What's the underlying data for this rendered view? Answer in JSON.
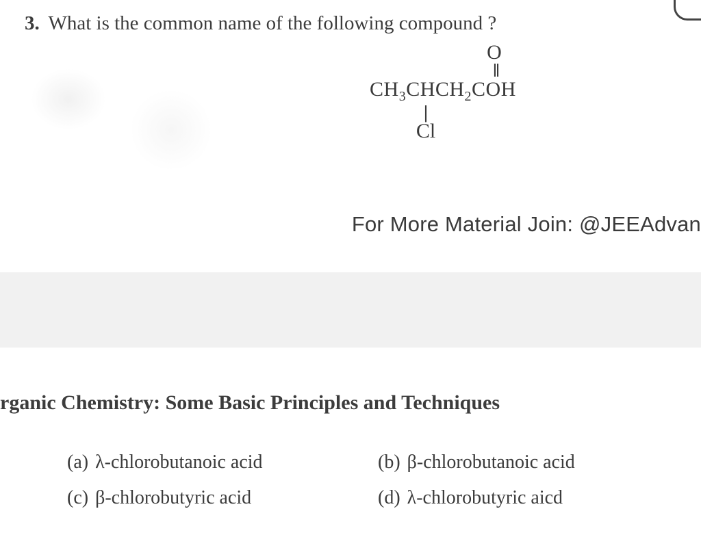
{
  "question": {
    "number": "3.",
    "text": "What is the common name of the following compound ?"
  },
  "structure": {
    "top_atom": "O",
    "double_bond": "‖",
    "main_line_html": "CH<sub>3</sub>CHCH<sub>2</sub>COH",
    "single_bond": "|",
    "substituent": "Cl"
  },
  "promo": "For More Material Join: @JEEAdvan",
  "chapter_title": "rganic Chemistry: Some Basic Principles and Techniques",
  "options": {
    "a": {
      "label": "(a)",
      "text": "λ-chlorobutanoic acid"
    },
    "b": {
      "label": "(b)",
      "text": "β-chlorobutanoic acid"
    },
    "c": {
      "label": "(c)",
      "text": "β-chlorobutyric acid"
    },
    "d": {
      "label": "(d)",
      "text": "λ-chlorobutyric aicd"
    }
  },
  "colors": {
    "text": "#3c3c3c",
    "band": "#f1f1f1",
    "background": "#ffffff"
  }
}
